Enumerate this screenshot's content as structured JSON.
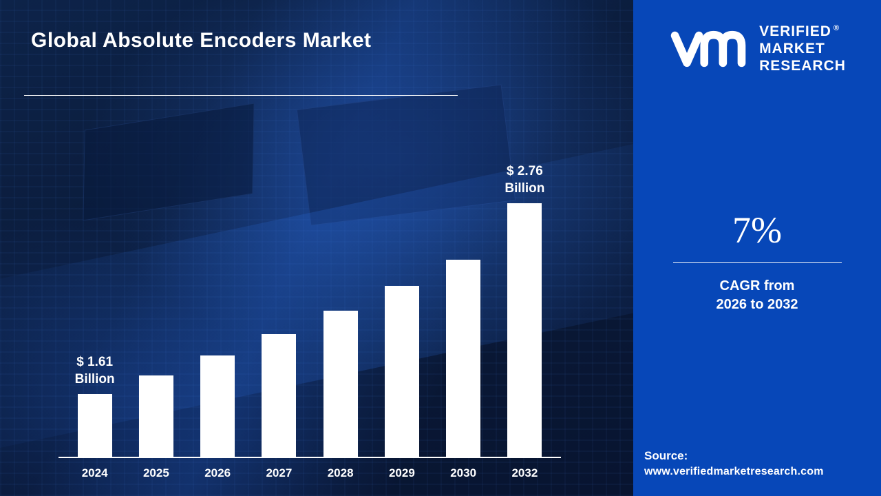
{
  "title": "Global Absolute Encoders Market",
  "colors": {
    "background_navy": "#0A1A38",
    "panel_blue": "#0747B8",
    "bar_fill": "#FFFFFF",
    "text": "#FFFFFF"
  },
  "brand": {
    "monogram_icon": "vmr-monogram-icon",
    "name_line1": "VERIFIED",
    "name_line2": "MARKET",
    "name_line3": "RESEARCH",
    "registered_mark": "®"
  },
  "stats": {
    "cagr_value": "7%",
    "cagr_caption_line1": "CAGR from",
    "cagr_caption_line2": "2026 to 2032"
  },
  "source": {
    "label": "Source:",
    "url": "www.verifiedmarketresearch.com"
  },
  "chart_data": {
    "type": "bar",
    "title": "Global Absolute Encoders Market",
    "unit": "USD Billion",
    "categories": [
      "2024",
      "2025",
      "2026",
      "2027",
      "2028",
      "2029",
      "2030",
      "2032"
    ],
    "values": [
      1.61,
      1.72,
      1.84,
      1.97,
      2.11,
      2.26,
      2.42,
      2.76
    ],
    "annotations": [
      {
        "category": "2024",
        "lines": [
          "$ 1.61",
          "Billion"
        ]
      },
      {
        "category": "2032",
        "lines": [
          "$ 2.76",
          "Billion"
        ]
      }
    ],
    "xlabel": "",
    "ylabel": "",
    "ylim": [
      1.23,
      2.85
    ],
    "grid": false,
    "legend": false,
    "bar_color": "#FFFFFF",
    "axis_color": "#FFFFFF"
  }
}
